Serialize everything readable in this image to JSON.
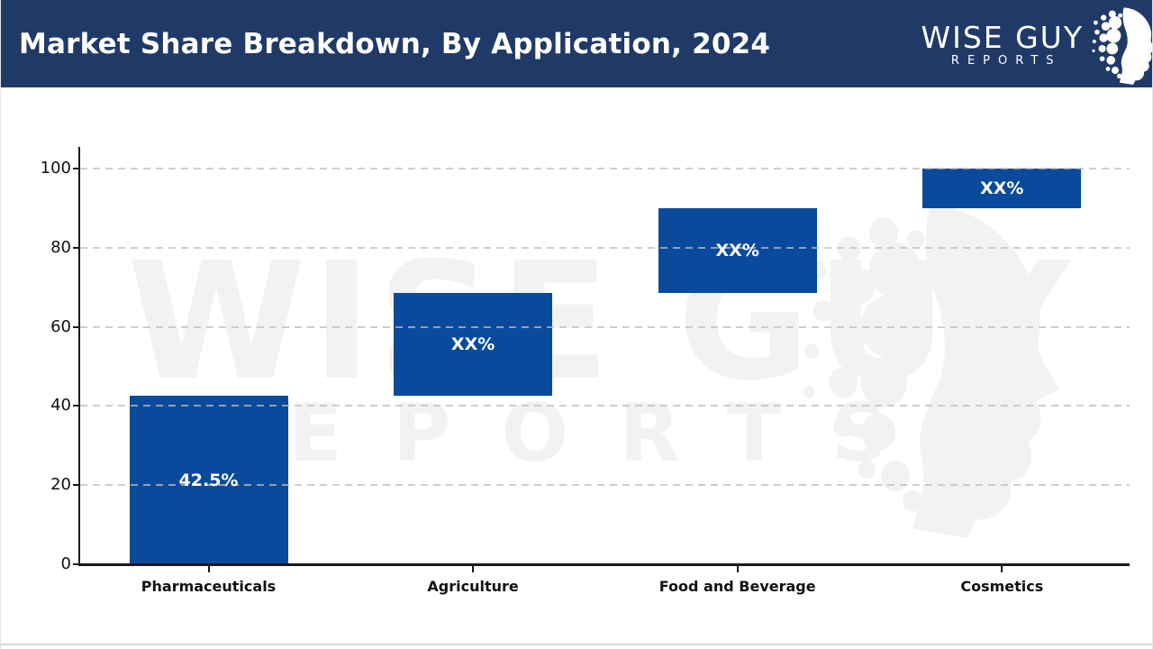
{
  "header": {
    "title": "Market Share Breakdown, By Application, 2024",
    "logo": {
      "line1": "WISE GUY",
      "line2": "REPORTS"
    }
  },
  "watermark": {
    "line1": "WISE GUY",
    "line2": "REPORTS"
  },
  "chart_data": {
    "type": "bar",
    "subtype": "waterfall",
    "title": "Market Share Breakdown, By Application, 2024",
    "categories": [
      "Pharmaceuticals",
      "Agriculture",
      "Food and Beverage",
      "Cosmetics"
    ],
    "segments": [
      {
        "category": "Pharmaceuticals",
        "start": 0,
        "end": 42.5,
        "label": "42.5%"
      },
      {
        "category": "Agriculture",
        "start": 42.5,
        "end": 68.5,
        "label": "XX%"
      },
      {
        "category": "Food and Beverage",
        "start": 68.5,
        "end": 90,
        "label": "XX%"
      },
      {
        "category": "Cosmetics",
        "start": 90,
        "end": 100,
        "label": "XX%"
      }
    ],
    "yticks": [
      0,
      20,
      40,
      60,
      80,
      100
    ],
    "ylim": [
      0,
      105
    ],
    "xlabel": "",
    "ylabel": "",
    "grid": "horizontal-dashed",
    "legend": "none",
    "bar_color": "#0a4a9c"
  },
  "colors": {
    "header_background": "#203a68",
    "bar_blue": "#0a4a9c",
    "axis": "#1a1a1a",
    "gridline": "#d8d8d8",
    "watermark": "#f2f2f2",
    "title_text": "#ffffff",
    "value_label_text": "#ffffff"
  }
}
